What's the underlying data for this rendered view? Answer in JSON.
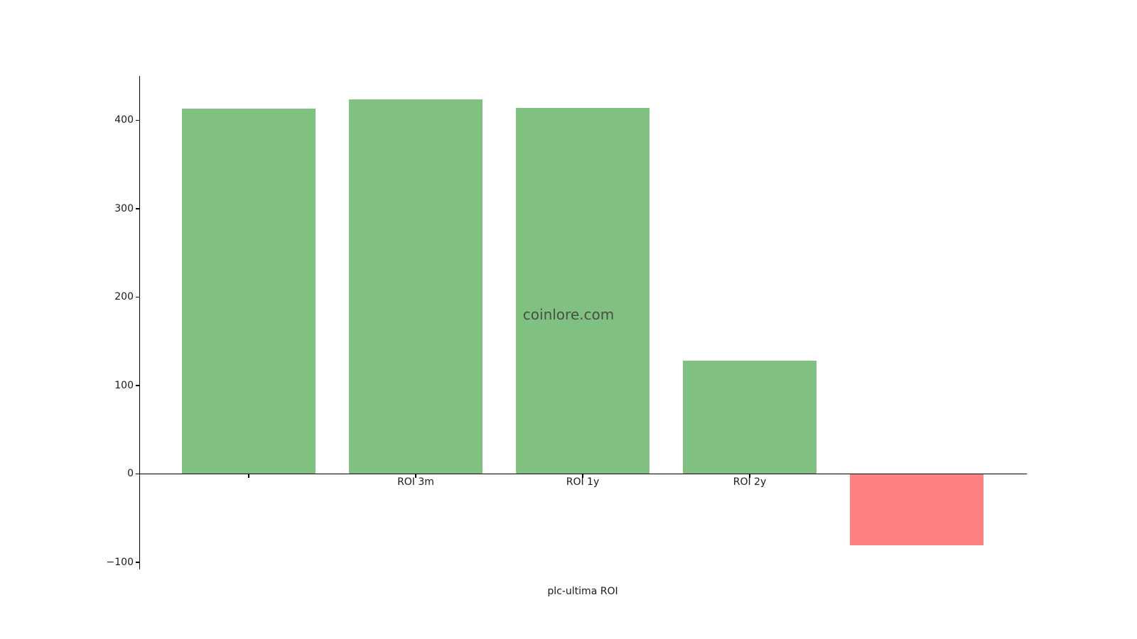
{
  "watermark": "coinlore.com",
  "chart_data": {
    "type": "bar",
    "title": "",
    "xlabel": "plc-ultima ROI",
    "ylabel": "",
    "categories": [
      "",
      "ROI 3m",
      "ROI 1y",
      "ROI 2y",
      ""
    ],
    "values": [
      413,
      424,
      414,
      128,
      -81
    ],
    "bar_colors": [
      "#80c080",
      "#80c080",
      "#80c080",
      "#80c080",
      "#ff8080"
    ],
    "yticks": [
      400,
      300,
      200,
      100,
      0,
      -100
    ],
    "ytick_labels": [
      "400",
      "300",
      "200",
      "100",
      "0",
      "−100"
    ],
    "xticks_shown": [
      true,
      true,
      true,
      true,
      false
    ],
    "ylim": [
      -106,
      451
    ],
    "grid": false,
    "legend_position": "none",
    "colors": {
      "positive": "#80c080",
      "negative": "#ff8080",
      "axis": "#000000",
      "watermark_text": "#3c3c3c"
    }
  }
}
